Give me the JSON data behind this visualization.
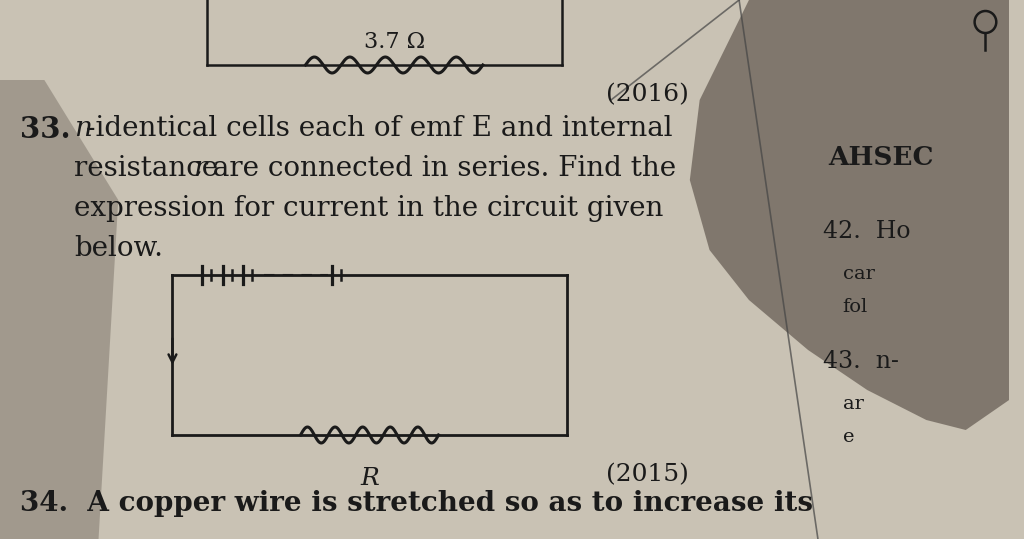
{
  "background_color": "#c9c2b4",
  "text_question_number": "33.",
  "text_year_top": "(2016)",
  "text_year_bottom": "(2015)",
  "text_34": "34.  A copper wire is stretched so as to increase its",
  "text_ahsec": "AHSEC",
  "text_42": "42.  Ho",
  "text_car": "car",
  "text_fol": "fol",
  "text_43": "43.  n-",
  "text_ar": "ar",
  "text_e": "e",
  "text_R": "R",
  "resistor_label_top": "3.7 Ω",
  "line_color": "#1a1a1a",
  "text_color": "#1a1a1a",
  "diagonal_line_color": "#555555",
  "shadow_color": "#6b6058",
  "right_margin_color": "#8a7e72",
  "font_size_main": 20,
  "font_size_number": 21,
  "font_size_year": 18,
  "font_size_side": 17,
  "font_size_label": 16
}
